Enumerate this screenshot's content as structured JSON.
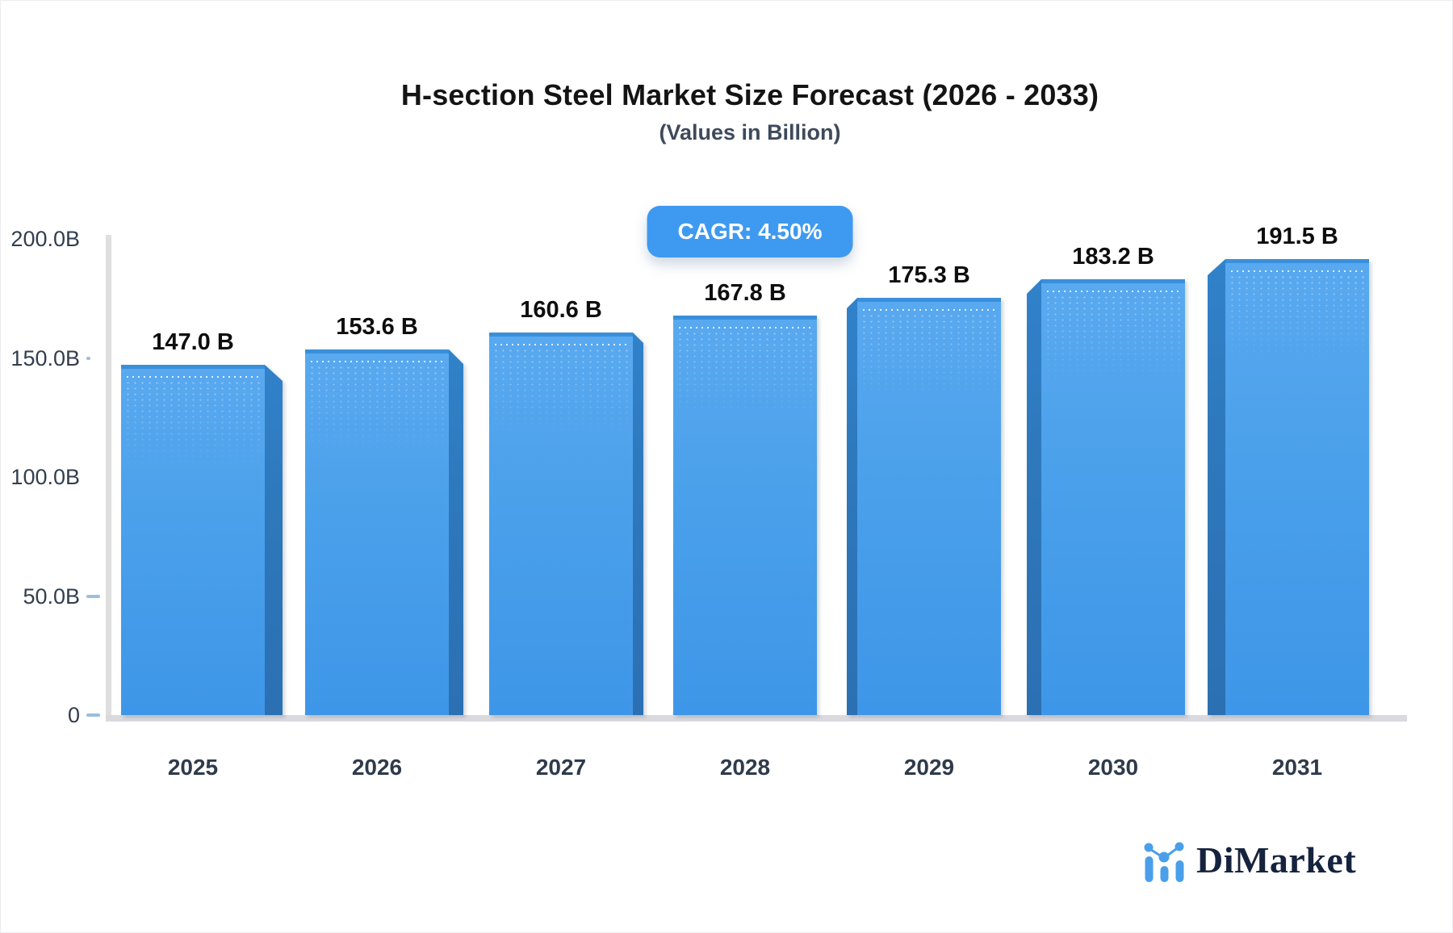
{
  "header": {
    "title": "H-section Steel Market Size Forecast (2026 - 2033)",
    "subtitle": "(Values in Billion)",
    "cagr_label": "CAGR: 4.50%"
  },
  "chart_data": {
    "type": "bar",
    "title": "H-section Steel Market Size Forecast (2026 - 2033)",
    "subtitle": "(Values in Billion)",
    "cagr_percent": 4.5,
    "unit": "Billion",
    "categories": [
      "2025",
      "2026",
      "2027",
      "2028",
      "2029",
      "2030",
      "2031"
    ],
    "values": [
      147.0,
      153.6,
      160.6,
      167.8,
      175.3,
      183.2,
      191.5
    ],
    "value_labels": [
      "147.0 B",
      "153.6 B",
      "160.6 B",
      "167.8 B",
      "175.3 B",
      "183.2 B",
      "191.5 B"
    ],
    "ylim": [
      0,
      200
    ],
    "y_ticks": [
      {
        "label": "200.0B",
        "value": 200,
        "tick": "none"
      },
      {
        "label": "150.0B",
        "value": 150,
        "tick": "dot"
      },
      {
        "label": "100.0B",
        "value": 100,
        "tick": "none"
      },
      {
        "label": "50.0B",
        "value": 50,
        "tick": "dash"
      },
      {
        "label": "0",
        "value": 0,
        "tick": "dash"
      }
    ],
    "grid": false,
    "legend": "none"
  },
  "colors": {
    "bar_face": "#4AA0EA",
    "bar_face_top": "#59A9F0",
    "bar_face_bottom": "#3E96E8",
    "bar_side": "#2E78BC",
    "bar_top_edge": "#3A8FDB",
    "badge_bg": "#3E9AF0",
    "badge_text": "#FFFFFF",
    "axis_line": "#DDDDDF",
    "tick_mark": "#9CBEDC",
    "title_text": "#141414",
    "subtitle_text": "#3E4A5B",
    "axis_label_text": "#323E4E",
    "brand_text": "#16233E",
    "brand_icon": "#4A9FEA"
  },
  "footer": {
    "brand": "DiMarket"
  }
}
